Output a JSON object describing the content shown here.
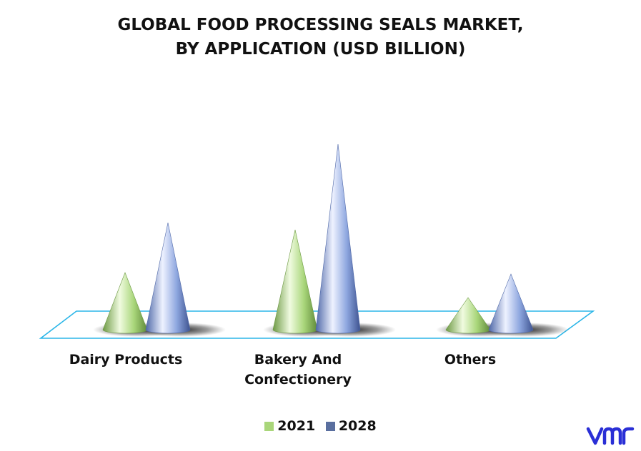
{
  "chart_data": {
    "type": "bar",
    "shape": "cone-3d",
    "title": "GLOBAL FOOD PROCESSING SEALS MARKET, BY APPLICATION (USD BILLION)",
    "title_lines": [
      "GLOBAL FOOD PROCESSING SEALS MARKET,",
      "BY APPLICATION (USD BILLION)"
    ],
    "categories": [
      "Dairy Products",
      "Bakery And Confectionery",
      "Others"
    ],
    "category_lines": [
      [
        "Dairy Products"
      ],
      [
        "Bakery And",
        "Confectionery"
      ],
      [
        "Others"
      ]
    ],
    "series": [
      {
        "name": "2021",
        "values": [
          0.8,
          1.4,
          0.45
        ],
        "color": "#a9d67a"
      },
      {
        "name": "2028",
        "values": [
          1.5,
          2.6,
          0.78
        ],
        "color": "#8da6df"
      }
    ],
    "ylim": [
      0,
      2.6
    ],
    "grid": false,
    "legend_position": "bottom"
  },
  "legend": {
    "items": [
      "2021",
      "2028"
    ]
  },
  "logo": {
    "name": "vmr-logo",
    "color": "#2a2fd6"
  }
}
